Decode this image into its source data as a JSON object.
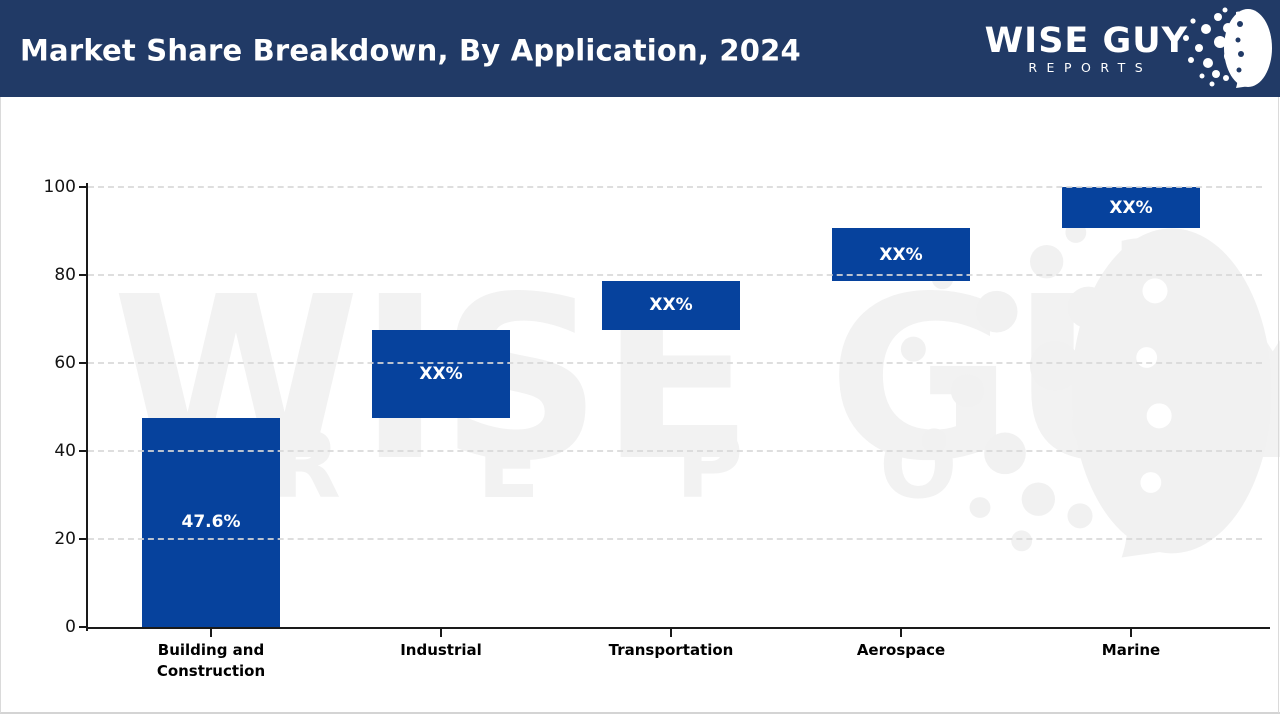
{
  "header": {
    "title": "Market Share Breakdown, By Application, 2024",
    "bg_color": "#213a66",
    "logo": {
      "line1": "WISE GUY",
      "line2": "REPORTS"
    }
  },
  "watermark": {
    "line1": "WISE GUY",
    "line2": "R E P O R T S"
  },
  "chart_data": {
    "type": "bar",
    "subtype": "waterfall",
    "title": "Market Share Breakdown, By Application, 2024",
    "categories": [
      "Building and Construction",
      "Industrial",
      "Transportation",
      "Aerospace",
      "Marine"
    ],
    "segments": [
      {
        "category": "Building and Construction",
        "start": 0,
        "end": 47.6,
        "label": "47.6%"
      },
      {
        "category": "Industrial",
        "start": 47.6,
        "end": 67.6,
        "label": "XX%"
      },
      {
        "category": "Transportation",
        "start": 67.6,
        "end": 78.6,
        "label": "XX%"
      },
      {
        "category": "Aerospace",
        "start": 78.6,
        "end": 90.6,
        "label": "XX%"
      },
      {
        "category": "Marine",
        "start": 90.6,
        "end": 100,
        "label": "XX%"
      }
    ],
    "ylim": [
      0,
      100
    ],
    "yticks": [
      0,
      20,
      40,
      60,
      80,
      100
    ],
    "xlabel": "",
    "ylabel": "",
    "legend": "none",
    "grid": {
      "horizontal": true,
      "style": "dashed",
      "color": "#d9d9d9"
    },
    "bar_color": "#06429d",
    "bar_label_color": "#ffffff",
    "axis_color": "#1a1a1a"
  }
}
